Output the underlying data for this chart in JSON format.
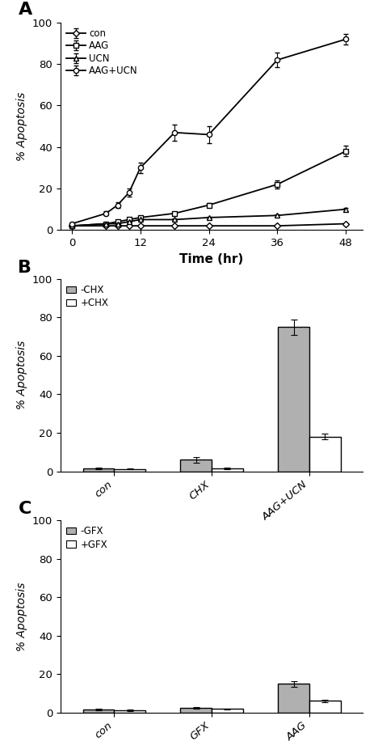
{
  "panel_A": {
    "xlabel": "Time (hr)",
    "ylabel": "% Apoptosis",
    "ylim": [
      0,
      100
    ],
    "yticks": [
      0,
      20,
      40,
      60,
      80,
      100
    ],
    "xticks": [
      0,
      12,
      24,
      36,
      48
    ],
    "time_points": [
      0,
      6,
      8,
      10,
      12,
      18,
      24,
      36,
      48
    ],
    "con": {
      "y": [
        2,
        2,
        2,
        2,
        2,
        2,
        2,
        2,
        3
      ],
      "yerr": [
        0.4,
        0.4,
        0.4,
        0.4,
        0.4,
        0.4,
        0.4,
        0.4,
        0.4
      ],
      "marker": "D",
      "label": "con"
    },
    "AAG": {
      "y": [
        2,
        3,
        4,
        5,
        6,
        8,
        12,
        22,
        38
      ],
      "yerr": [
        0.4,
        0.4,
        0.4,
        0.5,
        0.5,
        0.8,
        1.0,
        2.0,
        2.5
      ],
      "marker": "s",
      "label": "AAG"
    },
    "UCN": {
      "y": [
        2,
        3,
        3,
        4,
        5,
        5,
        6,
        7,
        10
      ],
      "yerr": [
        0.4,
        0.4,
        0.4,
        0.4,
        0.4,
        0.4,
        0.5,
        0.5,
        0.8
      ],
      "marker": "^",
      "label": "UCN"
    },
    "AAG_UCN": {
      "y": [
        3,
        8,
        12,
        18,
        30,
        47,
        46,
        82,
        92
      ],
      "yerr": [
        0.5,
        1.0,
        1.5,
        2.0,
        2.5,
        4.0,
        4.0,
        3.5,
        2.5
      ],
      "marker": "o",
      "label": "AAG+UCN"
    }
  },
  "panel_B": {
    "ylabel": "% Apoptosis",
    "ylim": [
      0,
      100
    ],
    "yticks": [
      0,
      20,
      40,
      60,
      80,
      100
    ],
    "categories": [
      "con",
      "CHX",
      "AAG+UCN"
    ],
    "minus": [
      1.5,
      6.0,
      75.0
    ],
    "minus_err": [
      0.4,
      1.5,
      4.0
    ],
    "plus": [
      1.2,
      1.5,
      18.0
    ],
    "plus_err": [
      0.3,
      0.4,
      1.5
    ],
    "minus_label": "-CHX",
    "plus_label": "+CHX",
    "minus_color": "#b0b0b0",
    "plus_color": "#ffffff"
  },
  "panel_C": {
    "ylabel": "% Apoptosis",
    "ylim": [
      0,
      100
    ],
    "yticks": [
      0,
      20,
      40,
      60,
      80,
      100
    ],
    "categories": [
      "con",
      "GFX",
      "AAG"
    ],
    "minus": [
      1.5,
      2.5,
      15.0
    ],
    "minus_err": [
      0.3,
      0.5,
      1.5
    ],
    "plus": [
      1.2,
      1.8,
      6.0
    ],
    "plus_err": [
      0.3,
      0.3,
      0.5
    ],
    "minus_label": "-GFX",
    "plus_label": "+GFX",
    "minus_color": "#b0b0b0",
    "plus_color": "#ffffff"
  },
  "bg_color": "#ffffff"
}
